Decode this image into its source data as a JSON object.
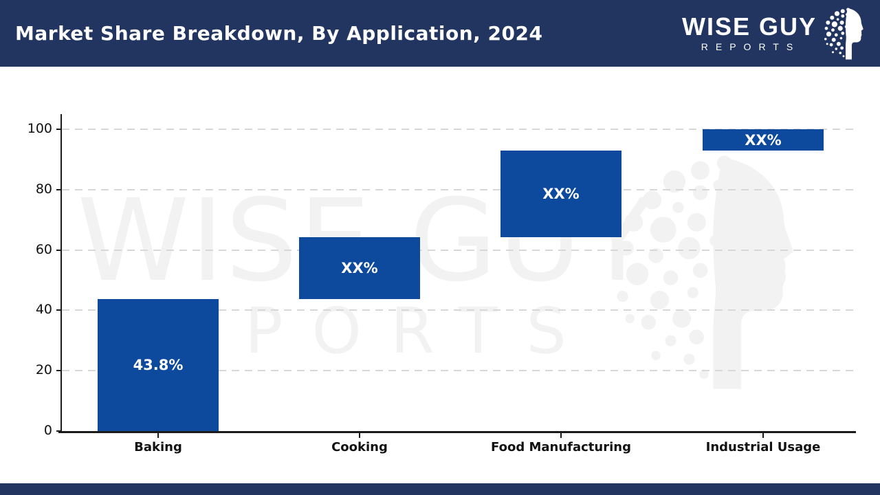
{
  "header": {
    "title": "Market Share Breakdown, By Application, 2024",
    "logo": {
      "line1": "WISE GUY",
      "line2": "REPORTS"
    }
  },
  "watermark": {
    "line1": "WISE GUY",
    "line2": "REPORTS"
  },
  "colors": {
    "header_bg": "#213560",
    "footer_bg": "#213560",
    "bar": "#0d4a9e",
    "bar_label": "#ffffff",
    "gridline": "#d8d8d8",
    "axis": "#1a1a1a",
    "watermark": "#f2f2f2"
  },
  "chart_data": {
    "type": "bar",
    "subtype": "waterfall",
    "title": "Market Share Breakdown, By Application, 2024",
    "xlabel": "",
    "ylabel": "",
    "ylim": [
      0,
      105
    ],
    "yticks": [
      0,
      20,
      40,
      60,
      80,
      100
    ],
    "grid": "horizontal-dashed",
    "legend": "none",
    "categories": [
      "Baking",
      "Cooking",
      "Food Manufacturing",
      "Industrial Usage"
    ],
    "series": [
      {
        "name": "Market Share",
        "segments": [
          {
            "category": "Baking",
            "start": 0,
            "end": 43.8,
            "label": "43.8%"
          },
          {
            "category": "Cooking",
            "start": 43.8,
            "end": 64.3,
            "label": "XX%"
          },
          {
            "category": "Food Manufacturing",
            "start": 64.3,
            "end": 92.9,
            "label": "XX%"
          },
          {
            "category": "Industrial Usage",
            "start": 92.9,
            "end": 100,
            "label": "XX%"
          }
        ]
      }
    ]
  }
}
